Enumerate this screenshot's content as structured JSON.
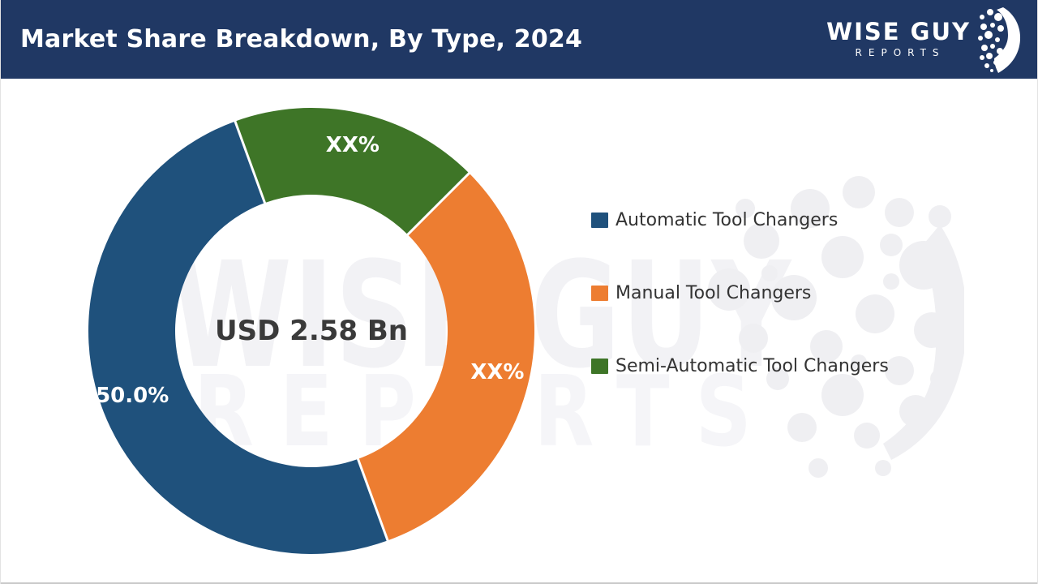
{
  "header": {
    "title": "Market Share Breakdown, By Type, 2024",
    "bg_color": "#203864",
    "logo": {
      "line1": "WISE GUY",
      "line2": "REPORTS"
    }
  },
  "watermark": {
    "line1": "WISE GUY",
    "line2": "REPORTS"
  },
  "chart_data": {
    "type": "pie",
    "subtype": "donut",
    "title": "Market Share Breakdown, By Type, 2024",
    "center_label": "USD 2.58 Bn",
    "legend_position": "right",
    "segments": [
      {
        "name": "Automatic Tool Changers",
        "color": "#1F517C",
        "display_label": "50.0%",
        "value_pct": 50.0,
        "start_angle_deg": 110,
        "end_angle_deg": 290
      },
      {
        "name": "Manual Tool Changers",
        "color": "#ED7D31",
        "display_label": "XX%",
        "value_pct": 31.9,
        "start_angle_deg": 290,
        "end_angle_deg": 405
      },
      {
        "name": "Semi-Automatic Tool Changers",
        "color": "#3E7527",
        "display_label": "XX%",
        "value_pct": 18.1,
        "start_angle_deg": 45,
        "end_angle_deg": 110
      }
    ]
  }
}
